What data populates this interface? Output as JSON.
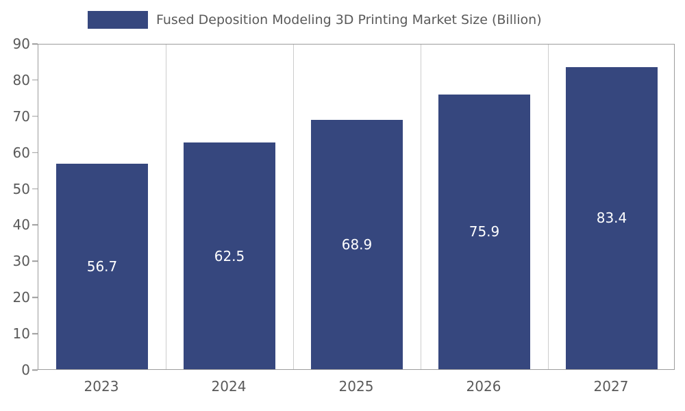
{
  "chart_data": {
    "type": "bar",
    "title": "Fused Deposition Modeling 3D Printing Market Size (Billion)",
    "categories": [
      "2023",
      "2024",
      "2025",
      "2026",
      "2027"
    ],
    "values": [
      56.7,
      62.5,
      68.9,
      75.9,
      83.4
    ],
    "data_labels": [
      "56.7",
      "62.5",
      "68.9",
      "75.9",
      "83.4"
    ],
    "xlabel": "",
    "ylabel": "",
    "ylim": [
      0,
      90
    ],
    "ytick_step": 10,
    "ytick_labels": [
      "0",
      "10",
      "20",
      "30",
      "40",
      "50",
      "60",
      "70",
      "80",
      "90"
    ],
    "grid": "vertical-category-separators",
    "legend_position": "top"
  },
  "legend": {
    "label": "Fused Deposition Modeling 3D Printing Market Size (Billion)"
  },
  "colors": {
    "bar": "#36477e",
    "bar_label": "#ffffff",
    "axis_text": "#595959",
    "grid_line": "#cccccc",
    "plot_border": "#9b9b9b"
  }
}
